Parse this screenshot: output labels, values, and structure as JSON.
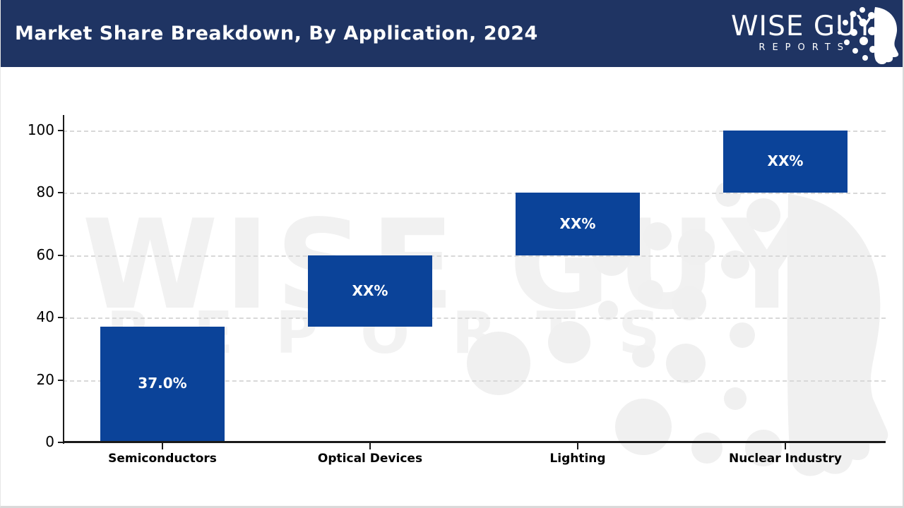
{
  "header": {
    "title": "Market Share Breakdown, By Application, 2024",
    "bg_color": "#1f3463",
    "logo": {
      "line1": "WISE GUY",
      "line2": "REPORTS"
    }
  },
  "watermark": {
    "line1": "WISE GUY",
    "line2": "REPORTS"
  },
  "chart_data": {
    "type": "bar",
    "subtype": "waterfall",
    "title": "Market Share Breakdown, By Application, 2024",
    "xlabel": "",
    "ylabel": "",
    "ylim": [
      0,
      105
    ],
    "yticks": [
      0,
      20,
      40,
      60,
      80,
      100
    ],
    "grid": "horizontal-dashed",
    "legend": "none",
    "bar_color": "#0b4399",
    "bar_label_color": "#ffffff",
    "categories": [
      "Semiconductors",
      "Optical Devices",
      "Lighting",
      "Nuclear Industry"
    ],
    "segments": [
      {
        "category": "Semiconductors",
        "start": 0,
        "end": 37,
        "label": "37.0%"
      },
      {
        "category": "Optical Devices",
        "start": 37,
        "end": 60,
        "label": "XX%"
      },
      {
        "category": "Lighting",
        "start": 60,
        "end": 80,
        "label": "XX%"
      },
      {
        "category": "Nuclear Industry",
        "start": 80,
        "end": 100,
        "label": "XX%"
      }
    ]
  }
}
